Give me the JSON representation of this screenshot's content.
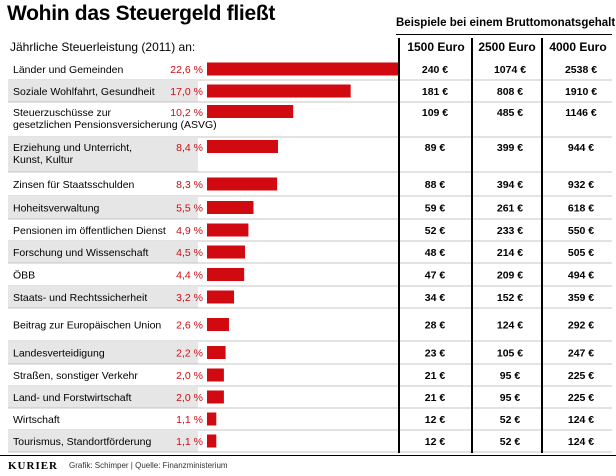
{
  "title": "Wohin das Steuergeld fließt",
  "subtitle": "Jährliche Steuerleistung (2011) an:",
  "examples_title": "Beispiele bei einem Bruttomonatsgehalt von",
  "columns": [
    "1500 Euro",
    "2500 Euro",
    "4000 Euro"
  ],
  "footer": {
    "brand": "KURIER",
    "credit": "Grafik: Schimper | Quelle: Finanzministerium"
  },
  "colors": {
    "bar": "#d10a11",
    "pct": "#d10a11",
    "row_shade": "#e6e6e6",
    "text": "#000000"
  },
  "chart_data": {
    "type": "bar",
    "orientation": "horizontal",
    "title": "Wohin das Steuergeld fließt",
    "subtitle": "Jährliche Steuerleistung (2011) an:",
    "unit": "%",
    "categories": [
      "Länder und Gemeinden",
      "Soziale Wohlfahrt, Gesundheit",
      "Steuerzuschüsse zur gesetzlichen Pensionsversicherung (ASVG)",
      "Erziehung und Unterricht, Kunst, Kultur",
      "Zinsen für Staatsschulden",
      "Hoheitsverwaltung",
      "Pensionen im öffentlichen Dienst",
      "Forschung und Wissenschaft",
      "ÖBB",
      "Staats- und Rechtssicherheit",
      "Beitrag zur Europäischen Union",
      "Landesverteidigung",
      "Straßen, sonstiger Verkehr",
      "Land- und Forstwirtschaft",
      "Wirtschaft",
      "Tourismus, Standortförderung"
    ],
    "labels": [
      "22,6 %",
      "17,0 %",
      "10,2 %",
      "8,4 %",
      "8,3 %",
      "5,5 %",
      "4,9 %",
      "4,5 %",
      "4,4 %",
      "3,2 %",
      "2,6 %",
      "2,2 %",
      "2,0 %",
      "2,0 %",
      "1,1 %",
      "1,1 %"
    ],
    "values": [
      22.6,
      17.0,
      10.2,
      8.4,
      8.3,
      5.5,
      4.9,
      4.5,
      4.4,
      3.2,
      2.6,
      2.2,
      2.0,
      2.0,
      1.1,
      1.1
    ],
    "xlim": [
      0,
      22.6
    ],
    "table": {
      "columns": [
        "1500 Euro",
        "2500 Euro",
        "4000 Euro"
      ],
      "rows": [
        [
          "240 €",
          "1074 €",
          "2538 €"
        ],
        [
          "181 €",
          "808 €",
          "1910 €"
        ],
        [
          "109 €",
          "485 €",
          "1146 €"
        ],
        [
          "89 €",
          "399 €",
          "944 €"
        ],
        [
          "88 €",
          "394 €",
          "932 €"
        ],
        [
          "59 €",
          "261 €",
          "618 €"
        ],
        [
          "52 €",
          "233 €",
          "550 €"
        ],
        [
          "48 €",
          "214 €",
          "505 €"
        ],
        [
          "47 €",
          "209 €",
          "494 €"
        ],
        [
          "34 €",
          "152 €",
          "359 €"
        ],
        [
          "28 €",
          "124 €",
          "292 €"
        ],
        [
          "23 €",
          "105 €",
          "247 €"
        ],
        [
          "21 €",
          "95 €",
          "225 €"
        ],
        [
          "21 €",
          "95 €",
          "225 €"
        ],
        [
          "12 €",
          "52 €",
          "124 €"
        ],
        [
          "12 €",
          "52 €",
          "124 €"
        ]
      ]
    }
  }
}
